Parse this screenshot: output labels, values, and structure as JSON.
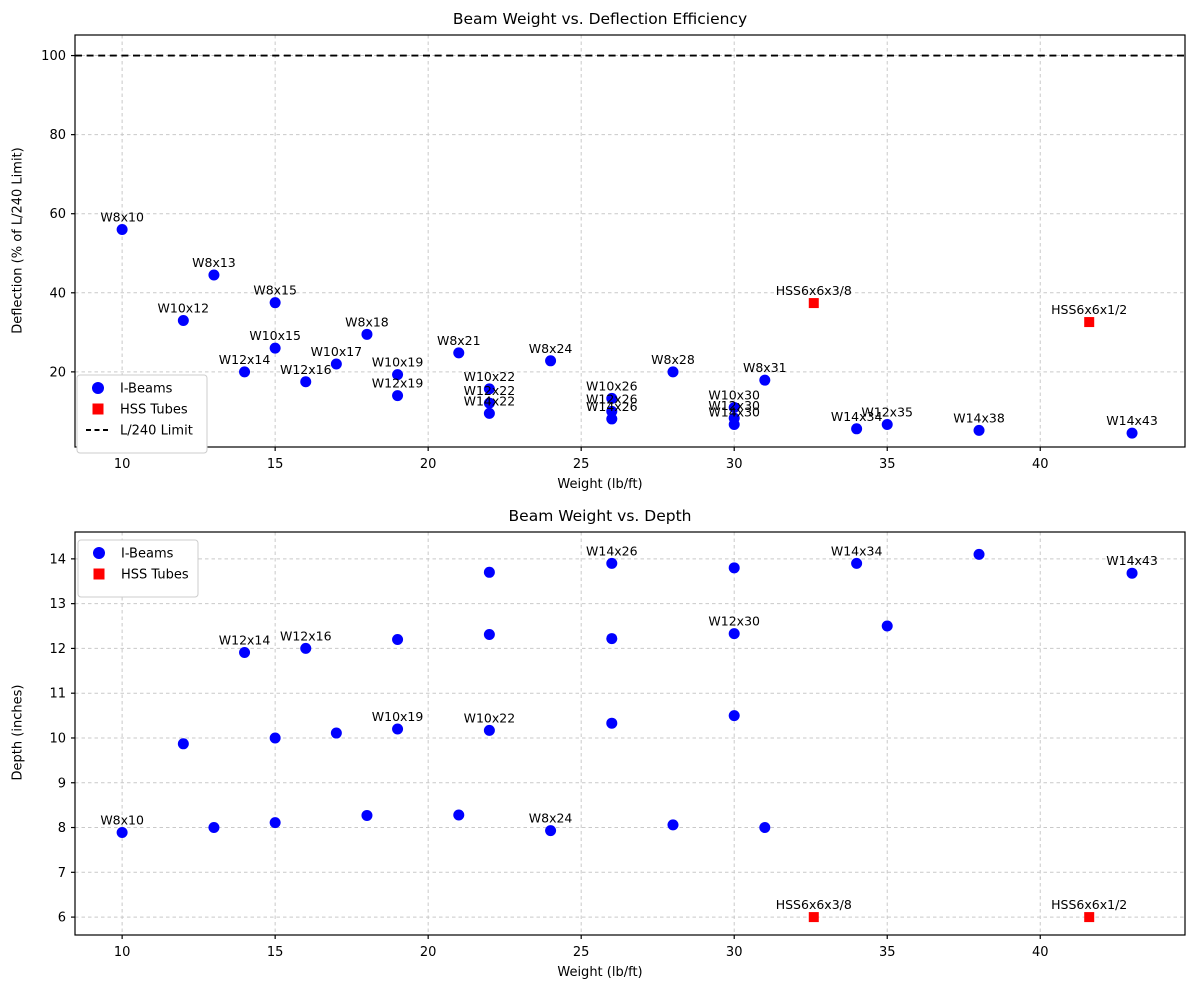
{
  "figure_background": "#ffffff",
  "colors": {
    "ibeam": "#0000ff",
    "hss": "#ff0000",
    "grid": "#c9c9c9",
    "refline": "#000000"
  },
  "chart_data": [
    {
      "type": "scatter",
      "title": "Beam Weight vs. Deflection Efficiency",
      "xlabel": "Weight (lb/ft)",
      "ylabel": "Deflection (% of L/240 Limit)",
      "xlim": [
        8.46,
        44.73
      ],
      "ylim": [
        1.0,
        105.2
      ],
      "xticks": [
        10,
        15,
        20,
        25,
        30,
        35,
        40
      ],
      "yticks": [
        20,
        40,
        60,
        80,
        100
      ],
      "grid": true,
      "legend_position": "lower-left",
      "legend_entries": [
        {
          "marker": "circle",
          "color": "#0000ff",
          "label": "I-Beams"
        },
        {
          "marker": "square",
          "color": "#ff0000",
          "label": "HSS Tubes"
        },
        {
          "marker": "dashed-line",
          "color": "#000000",
          "label": "L/240 Limit"
        }
      ],
      "ref_line": {
        "value": 100,
        "label": "L/240 Limit"
      },
      "series": [
        {
          "name": "I-Beams",
          "marker": "circle",
          "color": "#0000ff",
          "points": [
            {
              "label": "W8x10",
              "x": 10,
              "y": 56,
              "annotate": true
            },
            {
              "label": "W10x12",
              "x": 12,
              "y": 33,
              "annotate": true
            },
            {
              "label": "W8x13",
              "x": 13,
              "y": 44.5,
              "annotate": true
            },
            {
              "label": "W12x14",
              "x": 14,
              "y": 20,
              "annotate": true
            },
            {
              "label": "W8x15",
              "x": 15,
              "y": 37.5,
              "annotate": true
            },
            {
              "label": "W10x15",
              "x": 15,
              "y": 26,
              "annotate": true
            },
            {
              "label": "W12x16",
              "x": 16,
              "y": 17.5,
              "annotate": true
            },
            {
              "label": "W10x17",
              "x": 17,
              "y": 22,
              "annotate": true
            },
            {
              "label": "W8x18",
              "x": 18,
              "y": 29.5,
              "annotate": true
            },
            {
              "label": "W10x19",
              "x": 19,
              "y": 19.3,
              "annotate": true
            },
            {
              "label": "W12x19",
              "x": 19,
              "y": 14,
              "annotate": true
            },
            {
              "label": "W8x21",
              "x": 21,
              "y": 24.8,
              "annotate": true
            },
            {
              "label": "W10x22",
              "x": 22,
              "y": 15.7,
              "annotate": true
            },
            {
              "label": "W12x22",
              "x": 22,
              "y": 12.1,
              "annotate": true
            },
            {
              "label": "W14x22",
              "x": 22,
              "y": 9.5,
              "annotate": true
            },
            {
              "label": "W8x24",
              "x": 24,
              "y": 22.8,
              "annotate": true
            },
            {
              "label": "W10x26",
              "x": 26,
              "y": 13.3,
              "annotate": true
            },
            {
              "label": "W12x26",
              "x": 26,
              "y": 10,
              "annotate": true
            },
            {
              "label": "W14x26",
              "x": 26,
              "y": 8.1,
              "annotate": true
            },
            {
              "label": "W8x28",
              "x": 28,
              "y": 20,
              "annotate": true
            },
            {
              "label": "W10x30",
              "x": 30,
              "y": 11,
              "annotate": true
            },
            {
              "label": "W12x30",
              "x": 30,
              "y": 8.3,
              "annotate": true
            },
            {
              "label": "W14x30",
              "x": 30,
              "y": 6.7,
              "annotate": true
            },
            {
              "label": "W8x31",
              "x": 31,
              "y": 17.9,
              "annotate": true
            },
            {
              "label": "W14x34",
              "x": 34,
              "y": 5.6,
              "annotate": true
            },
            {
              "label": "W12x35",
              "x": 35,
              "y": 6.7,
              "annotate": true
            },
            {
              "label": "W14x38",
              "x": 38,
              "y": 5.2,
              "annotate": true
            },
            {
              "label": "W14x43",
              "x": 43,
              "y": 4.5,
              "annotate": true
            }
          ]
        },
        {
          "name": "HSS Tubes",
          "marker": "square",
          "color": "#ff0000",
          "points": [
            {
              "label": "HSS6x6x3/8",
              "x": 32.6,
              "y": 37.4,
              "annotate": true
            },
            {
              "label": "HSS6x6x1/2",
              "x": 41.6,
              "y": 32.6,
              "annotate": true
            }
          ]
        }
      ]
    },
    {
      "type": "scatter",
      "title": "Beam Weight vs. Depth",
      "xlabel": "Weight (lb/ft)",
      "ylabel": "Depth (inches)",
      "xlim": [
        8.46,
        44.73
      ],
      "ylim": [
        5.6,
        14.6
      ],
      "xticks": [
        10,
        15,
        20,
        25,
        30,
        35,
        40
      ],
      "yticks": [
        6,
        7,
        8,
        9,
        10,
        11,
        12,
        13,
        14
      ],
      "grid": true,
      "legend_position": "upper-left",
      "legend_entries": [
        {
          "marker": "circle",
          "color": "#0000ff",
          "label": "I-Beams"
        },
        {
          "marker": "square",
          "color": "#ff0000",
          "label": "HSS Tubes"
        }
      ],
      "series": [
        {
          "name": "I-Beams",
          "marker": "circle",
          "color": "#0000ff",
          "points": [
            {
              "label": "W8x10",
              "x": 10,
              "y": 7.89,
              "annotate": true
            },
            {
              "label": "W10x12",
              "x": 12,
              "y": 9.87,
              "annotate": false
            },
            {
              "label": "W8x13",
              "x": 13,
              "y": 8.0,
              "annotate": false
            },
            {
              "label": "W12x14",
              "x": 14,
              "y": 11.91,
              "annotate": true
            },
            {
              "label": "W8x15",
              "x": 15,
              "y": 8.11,
              "annotate": false
            },
            {
              "label": "W10x15",
              "x": 15,
              "y": 10.0,
              "annotate": false
            },
            {
              "label": "W12x16",
              "x": 16,
              "y": 12.0,
              "annotate": true
            },
            {
              "label": "W10x17",
              "x": 17,
              "y": 10.11,
              "annotate": false
            },
            {
              "label": "W8x18",
              "x": 18,
              "y": 8.27,
              "annotate": false
            },
            {
              "label": "W10x19",
              "x": 19,
              "y": 10.2,
              "annotate": true
            },
            {
              "label": "W12x19",
              "x": 19,
              "y": 12.2,
              "annotate": false
            },
            {
              "label": "W8x21",
              "x": 21,
              "y": 8.28,
              "annotate": false
            },
            {
              "label": "W10x22",
              "x": 22,
              "y": 10.17,
              "annotate": true
            },
            {
              "label": "W12x22",
              "x": 22,
              "y": 12.31,
              "annotate": false
            },
            {
              "label": "W14x22",
              "x": 22,
              "y": 13.7,
              "annotate": false
            },
            {
              "label": "W8x24",
              "x": 24,
              "y": 7.93,
              "annotate": true
            },
            {
              "label": "W10x26",
              "x": 26,
              "y": 10.33,
              "annotate": false
            },
            {
              "label": "W12x26",
              "x": 26,
              "y": 12.22,
              "annotate": false
            },
            {
              "label": "W14x26",
              "x": 26,
              "y": 13.9,
              "annotate": true
            },
            {
              "label": "W8x28",
              "x": 28,
              "y": 8.06,
              "annotate": false
            },
            {
              "label": "W10x30",
              "x": 30,
              "y": 10.5,
              "annotate": false
            },
            {
              "label": "W12x30",
              "x": 30,
              "y": 12.33,
              "annotate": true
            },
            {
              "label": "W14x30",
              "x": 30,
              "y": 13.8,
              "annotate": false
            },
            {
              "label": "W8x31",
              "x": 31,
              "y": 8.0,
              "annotate": false
            },
            {
              "label": "W14x34",
              "x": 34,
              "y": 13.9,
              "annotate": true
            },
            {
              "label": "W12x35",
              "x": 35,
              "y": 12.5,
              "annotate": false
            },
            {
              "label": "W14x38",
              "x": 38,
              "y": 14.1,
              "annotate": false
            },
            {
              "label": "W14x43",
              "x": 43,
              "y": 13.68,
              "annotate": true
            }
          ]
        },
        {
          "name": "HSS Tubes",
          "marker": "square",
          "color": "#ff0000",
          "points": [
            {
              "label": "HSS6x6x3/8",
              "x": 32.6,
              "y": 6.0,
              "annotate": true
            },
            {
              "label": "HSS6x6x1/2",
              "x": 41.6,
              "y": 6.0,
              "annotate": true
            }
          ]
        }
      ]
    }
  ]
}
